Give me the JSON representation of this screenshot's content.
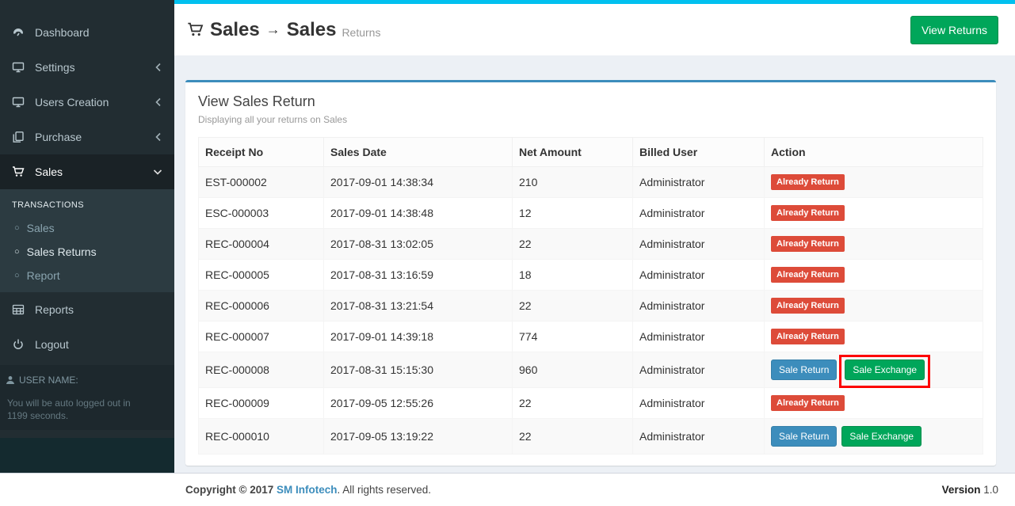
{
  "colors": {
    "topline": "#00c0ef",
    "sidebar_bg": "#222d32",
    "sidebar_active_bg": "#1a2226",
    "submenu_bg": "#2c3b41",
    "card_accent": "#3c8dbc",
    "green_button": "#00a65a",
    "blue_button": "#3c8dbc",
    "red_badge": "#dd4b39",
    "annotation_red": "#fd0000",
    "content_bg": "#ecf0f5"
  },
  "sidebar": {
    "items": [
      {
        "label": "Dashboard"
      },
      {
        "label": "Settings"
      },
      {
        "label": "Users Creation"
      },
      {
        "label": "Purchase"
      },
      {
        "label": "Sales"
      }
    ],
    "transactions_header": "TRANSACTIONS",
    "submenu": [
      {
        "label": "Sales"
      },
      {
        "label": "Sales Returns"
      },
      {
        "label": "Report"
      }
    ],
    "reports_label": "Reports",
    "logout_label": "Logout",
    "user_label": "USER NAME:",
    "auto_logout_message": "You will be auto logged out in 1199 seconds."
  },
  "header": {
    "breadcrumb": {
      "section": "Sales",
      "page": "Sales",
      "page_small": "Returns"
    },
    "view_returns_button": "View Returns"
  },
  "card": {
    "title": "View Sales Return",
    "subtitle": "Displaying all your returns on Sales"
  },
  "table": {
    "columns": [
      "Receipt No",
      "Sales Date",
      "Net Amount",
      "Billed User",
      "Action"
    ],
    "rows": [
      {
        "receipt": "EST-000002",
        "date": "2017-09-01 14:38:34",
        "amount": "210",
        "user": "Administrator",
        "action": "already",
        "highlight": false
      },
      {
        "receipt": "ESC-000003",
        "date": "2017-09-01 14:38:48",
        "amount": "12",
        "user": "Administrator",
        "action": "already",
        "highlight": false
      },
      {
        "receipt": "REC-000004",
        "date": "2017-08-31 13:02:05",
        "amount": "22",
        "user": "Administrator",
        "action": "already",
        "highlight": false
      },
      {
        "receipt": "REC-000005",
        "date": "2017-08-31 13:16:59",
        "amount": "18",
        "user": "Administrator",
        "action": "already",
        "highlight": false
      },
      {
        "receipt": "REC-000006",
        "date": "2017-08-31 13:21:54",
        "amount": "22",
        "user": "Administrator",
        "action": "already",
        "highlight": false
      },
      {
        "receipt": "REC-000007",
        "date": "2017-09-01 14:39:18",
        "amount": "774",
        "user": "Administrator",
        "action": "already",
        "highlight": false
      },
      {
        "receipt": "REC-000008",
        "date": "2017-08-31 15:15:30",
        "amount": "960",
        "user": "Administrator",
        "action": "return_exchange",
        "highlight": true
      },
      {
        "receipt": "REC-000009",
        "date": "2017-09-05 12:55:26",
        "amount": "22",
        "user": "Administrator",
        "action": "already",
        "highlight": false
      },
      {
        "receipt": "REC-000010",
        "date": "2017-09-05 13:19:22",
        "amount": "22",
        "user": "Administrator",
        "action": "return_exchange",
        "highlight": false
      }
    ]
  },
  "actions": {
    "already_return": "Already Return",
    "sale_return": "Sale Return",
    "sale_exchange": "Sale Exchange"
  },
  "footer": {
    "copyright_prefix": "Copyright © 2017 ",
    "company": "SM Infotech",
    "copyright_suffix": ". All rights reserved.",
    "version_label": "Version",
    "version_value": "1.0"
  }
}
